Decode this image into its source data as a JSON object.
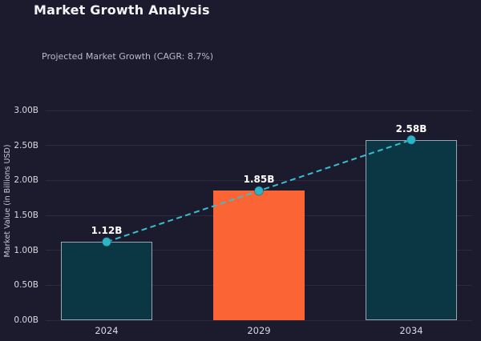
{
  "header": {
    "title": "Market Growth Analysis",
    "subtitle": "Projected Market Growth (CAGR: 8.7%)"
  },
  "chart_data": {
    "type": "bar",
    "title": "Market Growth Analysis",
    "subtitle": "Projected Market Growth (CAGR: 8.7%)",
    "categories": [
      "2024",
      "2029",
      "2034"
    ],
    "values": [
      1.12,
      1.85,
      2.58
    ],
    "value_labels": [
      "1.12B",
      "1.85B",
      "2.58B"
    ],
    "xlabel": "",
    "ylabel": "Market Value (in Billions USD)",
    "ylim": [
      0,
      3.0
    ],
    "yticks": [
      0,
      0.5,
      1.0,
      1.5,
      2.0,
      2.5,
      3.0
    ],
    "ytick_labels": [
      "0.00B",
      "0.50B",
      "1.00B",
      "1.50B",
      "2.00B",
      "2.50B",
      "3.00B"
    ],
    "grid": true,
    "legend": false,
    "trend_line": {
      "style": "dashed",
      "color": "#38bfd1",
      "marker_color": "#2fb3c7"
    },
    "bar_colors": [
      "#0b3744",
      "#fb6434",
      "#0b3744"
    ],
    "bar_edge_colors": [
      "#9aa6b6",
      "#fb6434",
      "#9aa6b6"
    ],
    "colors": {
      "background": "#1c1b2e",
      "title": "#f4f4f7",
      "subtitle": "#b9b9c6",
      "tick_label": "#d9d9e2",
      "axis_label": "#c6c6d2",
      "value_label": "#ffffff",
      "grid": "rgba(255,255,255,0.07)"
    }
  }
}
